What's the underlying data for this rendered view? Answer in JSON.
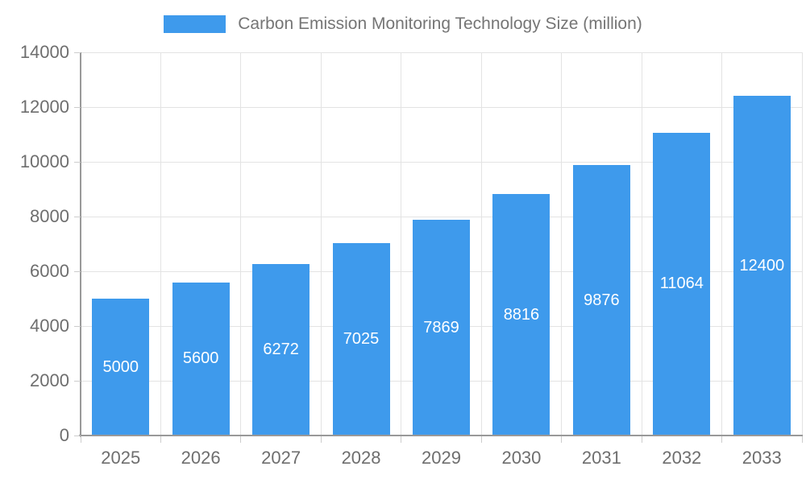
{
  "chart_data": {
    "type": "bar",
    "title": "Carbon Emission Monitoring Technology Size (million)",
    "legend": [
      "Carbon Emission Monitoring Technology Size (million)"
    ],
    "legend_position": "top",
    "categories": [
      "2025",
      "2026",
      "2027",
      "2028",
      "2029",
      "2030",
      "2031",
      "2032",
      "2033"
    ],
    "values": [
      5000,
      5600,
      6272,
      7025,
      7869,
      8816,
      9876,
      11064,
      12400
    ],
    "xlabel": "",
    "ylabel": "",
    "ylim": [
      0,
      14000
    ],
    "yticks": [
      0,
      2000,
      4000,
      6000,
      8000,
      10000,
      12000,
      14000
    ],
    "grid": true,
    "bar_label_position": "inside-center",
    "colors": {
      "bar": "#3E9AEC",
      "bar_label": "#ffffff",
      "grid": "#e3e3e3",
      "axis": "#999999",
      "tick": "#cccccc",
      "axis_text": "#6e6e6e",
      "legend_text": "#757575",
      "background": "#ffffff"
    }
  }
}
